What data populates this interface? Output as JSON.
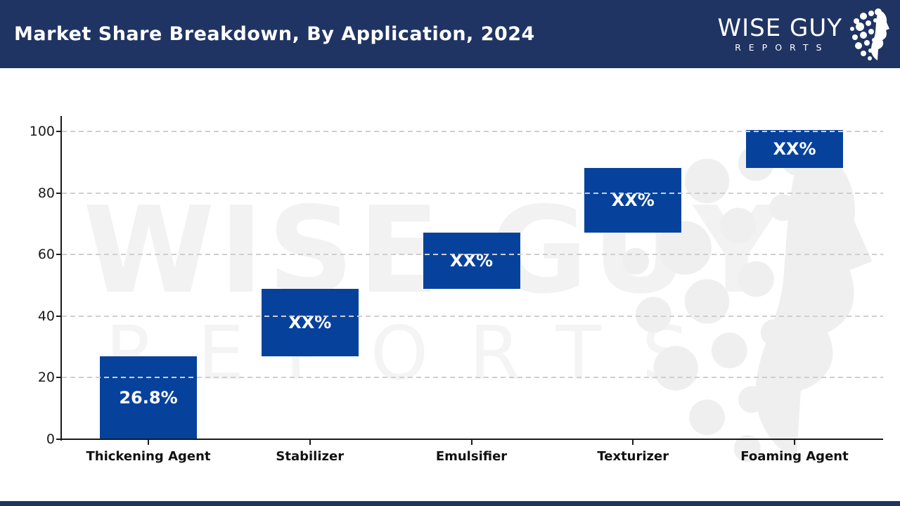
{
  "header": {
    "title": "Market Share Breakdown, By Application, 2024",
    "bg_color": "#1F3463",
    "logo": {
      "line1": "WISE GUY",
      "line2": "REPORTS"
    }
  },
  "watermark": {
    "line1": "WISE GUY",
    "line2": "REPORTS"
  },
  "chart_data": {
    "type": "bar",
    "subtype": "waterfall",
    "title": "Market Share Breakdown, By Application, 2024",
    "categories": [
      "Thickening Agent",
      "Stabilizer",
      "Emulsifier",
      "Texturizer",
      "Foaming Agent"
    ],
    "segments": [
      {
        "category": "Thickening Agent",
        "start": 0,
        "end": 26.8,
        "label": "26.8%"
      },
      {
        "category": "Stabilizer",
        "start": 26.8,
        "end": 48.7,
        "label": "XX%"
      },
      {
        "category": "Emulsifier",
        "start": 48.7,
        "end": 67.2,
        "label": "XX%"
      },
      {
        "category": "Texturizer",
        "start": 67.2,
        "end": 88.2,
        "label": "XX%"
      },
      {
        "category": "Foaming Agent",
        "start": 88.2,
        "end": 100.5,
        "label": "XX%"
      }
    ],
    "values": [
      26.8,
      21.9,
      18.5,
      21.0,
      12.3
    ],
    "y_ticks": [
      "0",
      "20",
      "40",
      "60",
      "80",
      "100"
    ],
    "ylim": [
      0,
      105
    ],
    "xlabel": "",
    "ylabel": "",
    "grid": "horizontal-dashed",
    "legend": "none",
    "bar_color": "#06429C",
    "grid_color": "#cfcfcf",
    "axis_color": "#1a1a1a"
  },
  "footer": {
    "bg_color": "#1F3463"
  }
}
